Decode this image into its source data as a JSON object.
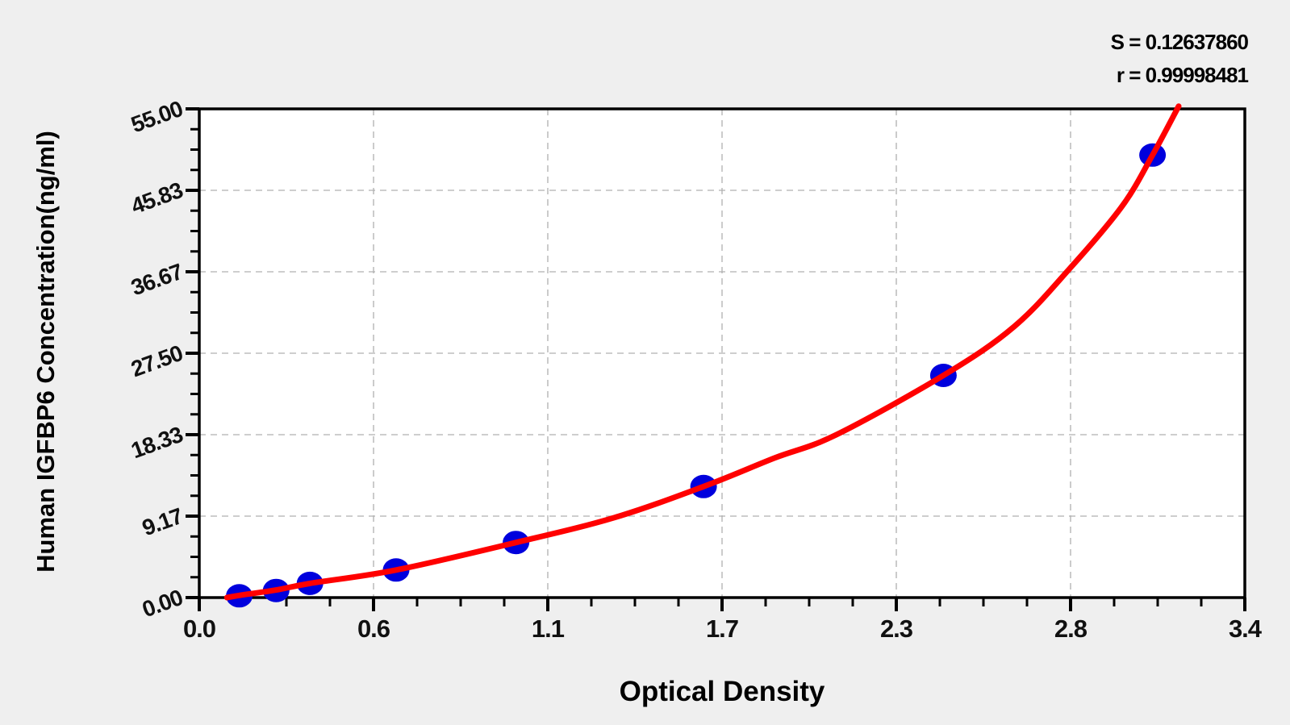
{
  "header_stats": {
    "s_line": "S = 0.12637860",
    "r_line": "r = 0.99998481"
  },
  "chart_data": {
    "type": "scatter",
    "title": "",
    "xlabel": "Optical Density",
    "ylabel": "Human IGFBP6 Concentration(ng/ml)",
    "xlim": [
      0,
      3.4
    ],
    "ylim": [
      0,
      55
    ],
    "x_ticks": {
      "values": [
        0,
        0.5667,
        1.1333,
        1.7,
        2.2667,
        2.8333,
        3.4
      ],
      "labels": [
        "0.0",
        "0.6",
        "1.1",
        "1.7",
        "2.3",
        "2.8",
        "3.4"
      ]
    },
    "y_ticks": {
      "values": [
        0,
        9.1667,
        18.3333,
        27.5,
        36.6667,
        45.8333,
        55
      ],
      "labels": [
        "0.00",
        "9.17",
        "18.33",
        "27.50",
        "36.67",
        "45.83",
        "55.00"
      ]
    },
    "minor_ticks_per_interval": 3,
    "grid": "dashed-on-major-ticks",
    "legend": "none",
    "fit_stats": {
      "S": "0.12637860",
      "r": "0.99998481"
    },
    "series": [
      {
        "name": "standard-points",
        "type": "scatter",
        "color": "#0000dd",
        "points": [
          [
            0.13,
            0.2
          ],
          [
            0.25,
            0.8
          ],
          [
            0.36,
            1.6
          ],
          [
            0.64,
            3.1
          ],
          [
            1.03,
            6.2
          ],
          [
            1.64,
            12.5
          ],
          [
            2.42,
            25.0
          ],
          [
            3.1,
            49.8
          ]
        ]
      },
      {
        "name": "fitted-curve",
        "type": "line",
        "color": "#ff0000",
        "points": [
          [
            0.09,
            0.0
          ],
          [
            0.14,
            0.3
          ],
          [
            0.25,
            0.85
          ],
          [
            0.36,
            1.6
          ],
          [
            0.64,
            3.1
          ],
          [
            1.03,
            6.2
          ],
          [
            1.35,
            9.0
          ],
          [
            1.64,
            12.5
          ],
          [
            1.87,
            15.7
          ],
          [
            2.07,
            18.3
          ],
          [
            2.42,
            25.0
          ],
          [
            2.65,
            30.5
          ],
          [
            2.83,
            37.0
          ],
          [
            3.0,
            44.0
          ],
          [
            3.1,
            49.8
          ],
          [
            3.185,
            55.3
          ]
        ]
      }
    ],
    "colors": {
      "background": "#efefef",
      "plot_background": "#ffffff",
      "frame": "#000000",
      "grid": "#b0b0b0",
      "curve": "#ff0000",
      "points": "#0000dd",
      "text": "#000000"
    }
  }
}
